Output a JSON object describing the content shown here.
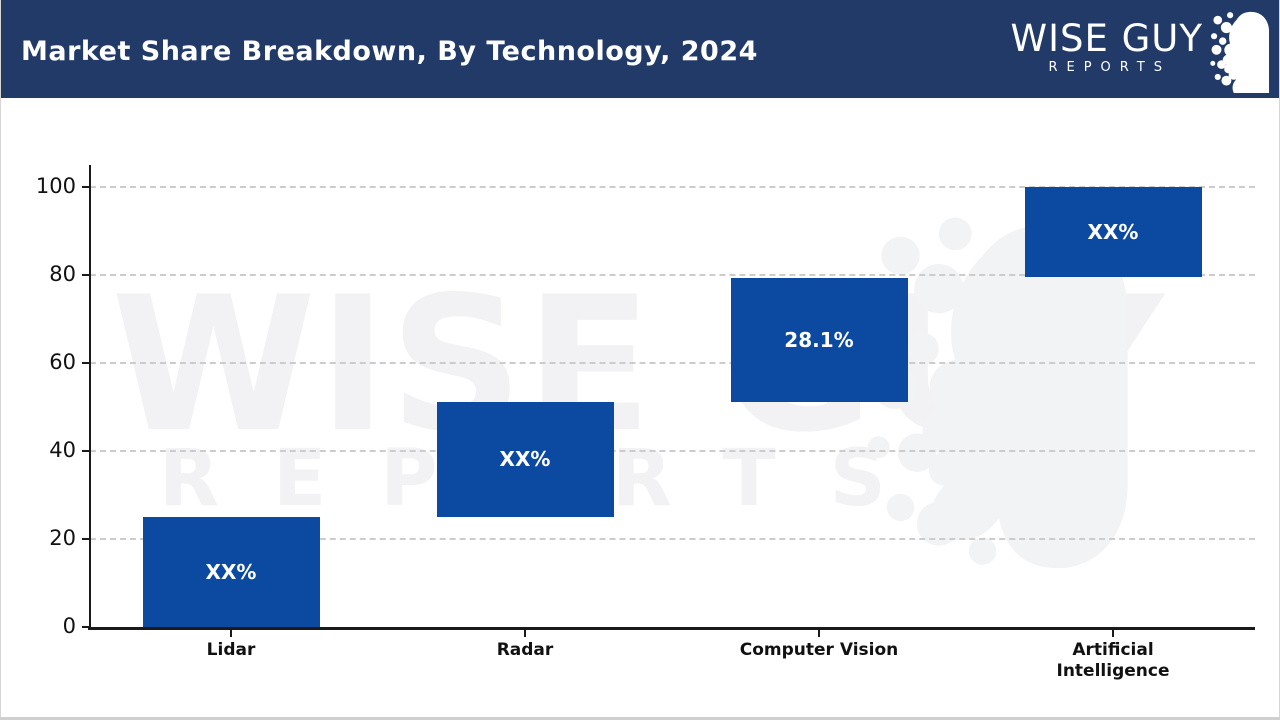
{
  "header": {
    "title": "Market Share Breakdown, By Technology, 2024",
    "logo": {
      "brand_line1": "WISE GUY",
      "brand_line2": "REPORTS"
    }
  },
  "watermark": {
    "line1": "WISE GUY",
    "line2": "REPORTS"
  },
  "colors": {
    "header_bg": "#223A68",
    "bar": "#0C49A0",
    "bar_label_text": "#FFFFFF",
    "grid": "#CCCCCC",
    "axis": "#1A1A1A",
    "tick_text": "#111111",
    "watermark": "#F2F2F4"
  },
  "chart_data": {
    "type": "bar",
    "subtype": "floating-segment-waterfall",
    "title": "Market Share Breakdown, By Technology, 2024",
    "xlabel": "",
    "ylabel": "",
    "ylim": [
      0,
      100
    ],
    "yticks": [
      0,
      20,
      40,
      60,
      80,
      100
    ],
    "grid": "horizontal-dashed",
    "legend": "none",
    "categories": [
      "Lidar",
      "Radar",
      "Computer Vision",
      "Artificial Intelligence"
    ],
    "series": [
      {
        "name": "Market Share (%)",
        "segments": [
          {
            "category": "Lidar",
            "start": 0.0,
            "end": 25.0,
            "label": "XX%"
          },
          {
            "category": "Radar",
            "start": 25.1,
            "end": 51.2,
            "label": "XX%"
          },
          {
            "category": "Computer Vision",
            "start": 51.2,
            "end": 79.3,
            "label": "28.1%"
          },
          {
            "category": "Artificial Intelligence",
            "start": 79.5,
            "end": 100.0,
            "label": "XX%"
          }
        ]
      }
    ]
  }
}
